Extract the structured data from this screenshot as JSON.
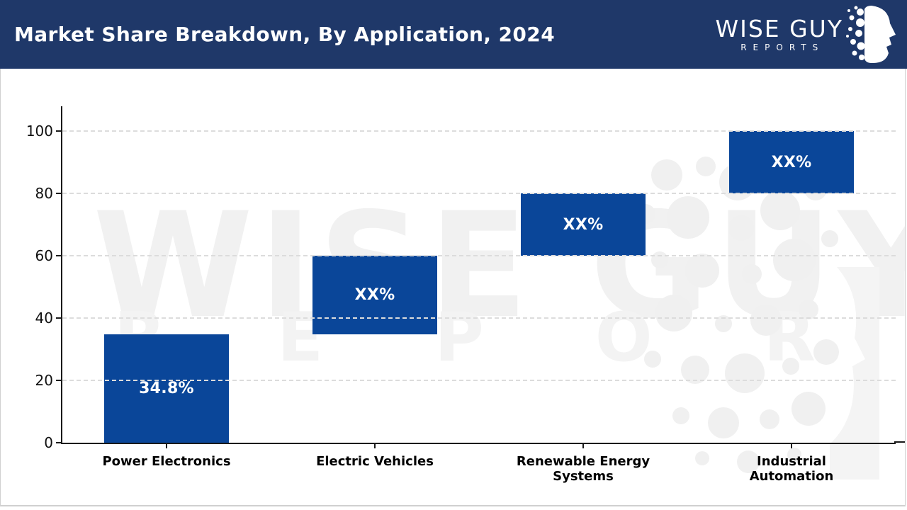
{
  "header": {
    "title": "Market Share Breakdown, By Application, 2024",
    "logo": {
      "line1": "WISE GUY",
      "line2": "REPORTS"
    }
  },
  "watermark": {
    "line1": "WISE GUY",
    "line2": "REPORTS"
  },
  "colors": {
    "header_bg": "#1f3869",
    "bar_fill": "#0a4699",
    "bar_label": "#ffffff",
    "gridline": "#dcdcdc",
    "axis": "#1a1a1a"
  },
  "chart_data": {
    "type": "bar",
    "subtype": "waterfall",
    "title": "Market Share Breakdown, By Application, 2024",
    "xlabel": "",
    "ylabel": "",
    "ylim": [
      0,
      108
    ],
    "yticks": [
      0,
      20,
      40,
      60,
      80,
      100
    ],
    "grid": "horizontal-dashed",
    "legend": "none",
    "categories": [
      "Power Electronics",
      "Electric Vehicles",
      "Renewable Energy Systems",
      "Industrial Automation"
    ],
    "category_lines": [
      [
        "Power Electronics"
      ],
      [
        "Electric Vehicles"
      ],
      [
        "Renewable Energy",
        "Systems"
      ],
      [
        "Industrial",
        "Automation"
      ]
    ],
    "series": [
      {
        "name": "Market Share",
        "segments": [
          {
            "category": "Power Electronics",
            "start": 0,
            "end": 34.8,
            "label": "34.8%"
          },
          {
            "category": "Electric Vehicles",
            "start": 34.8,
            "end": 60,
            "label": "XX%"
          },
          {
            "category": "Renewable Energy Systems",
            "start": 60,
            "end": 80,
            "label": "XX%"
          },
          {
            "category": "Industrial Automation",
            "start": 80,
            "end": 100,
            "label": "XX%"
          }
        ]
      }
    ]
  }
}
